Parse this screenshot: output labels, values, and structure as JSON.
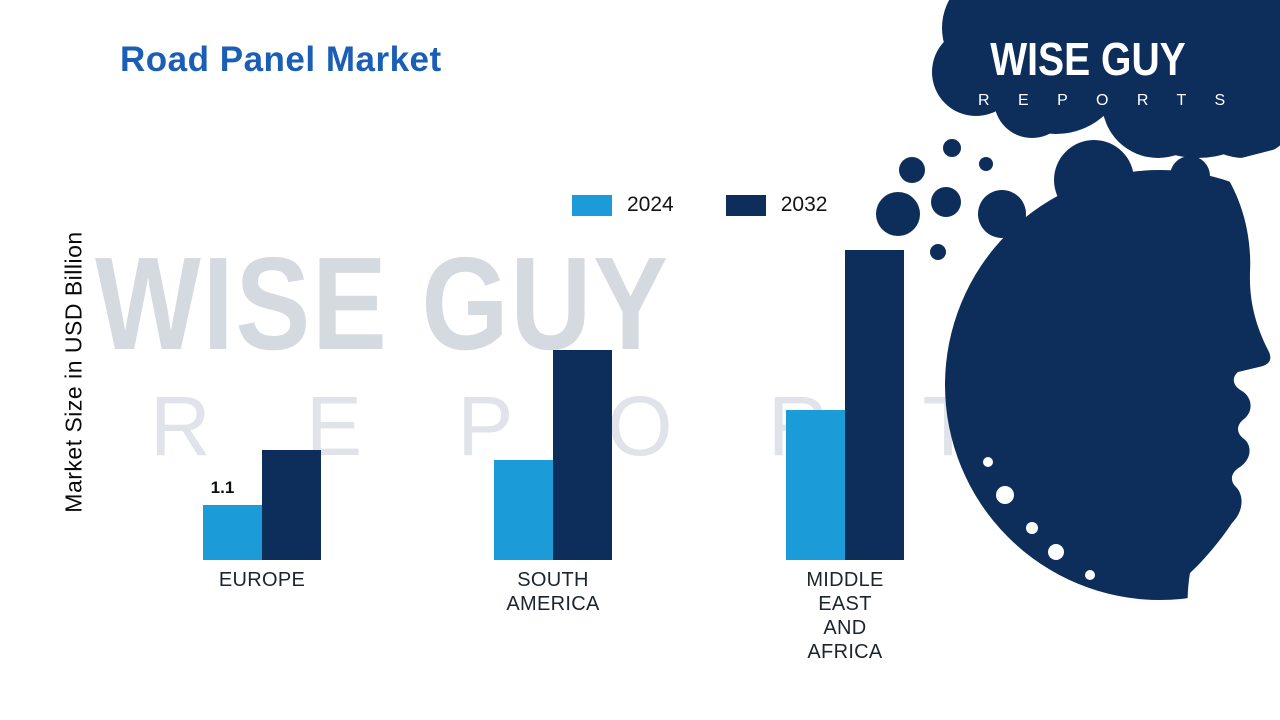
{
  "page": {
    "title": "Road Panel Market"
  },
  "logo": {
    "line1": "WISE GUY",
    "line2": "R E P O R T S"
  },
  "watermark": {
    "line1": "WISE GUY",
    "line2": "R E P O R T S"
  },
  "colors": {
    "title_blue": "#1b5eb5",
    "series_2024_blue": "#1b9bd8",
    "series_2032_navy": "#0d2d5b",
    "watermark_gray": "#d5dae1"
  },
  "chart_data": {
    "type": "bar",
    "title": "Road Panel Market",
    "ylabel": "Market Size in USD Billion",
    "xlabel": "",
    "ylim": [
      0,
      7
    ],
    "grid": false,
    "legend_position": "top",
    "unit": "USD Billion",
    "categories": [
      "EUROPE",
      "SOUTH\nAMERICA",
      "MIDDLE\nEAST\nAND\nAFRICA"
    ],
    "series": [
      {
        "name": "2024",
        "color": "#1b9bd8",
        "values": [
          1.1,
          2.0,
          3.0
        ],
        "labels": [
          "1.1",
          "",
          ""
        ]
      },
      {
        "name": "2032",
        "color": "#0d2d5b",
        "values": [
          2.2,
          4.2,
          6.2
        ],
        "labels": [
          "",
          "",
          ""
        ]
      }
    ]
  }
}
